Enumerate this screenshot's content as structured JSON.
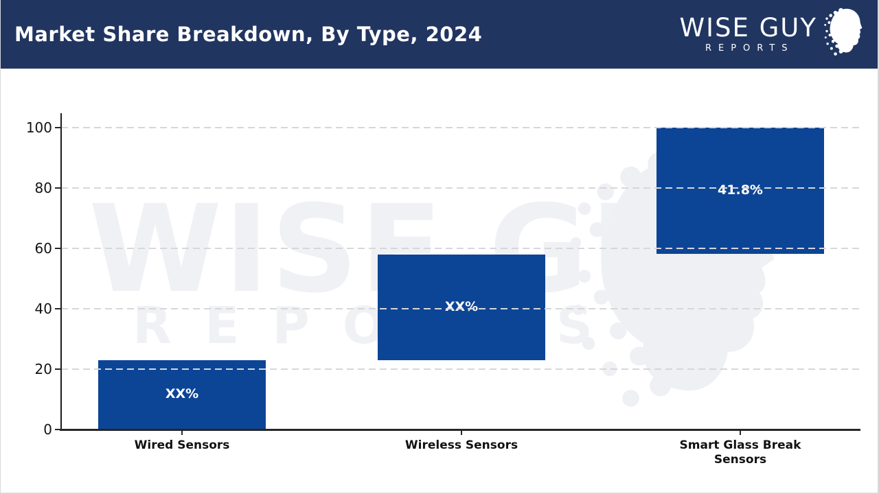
{
  "header": {
    "title": "Market Share Breakdown, By Type, 2024",
    "logo": {
      "line1": "WISE GUY",
      "line2": "REPORTS"
    }
  },
  "watermark": {
    "line1": "WISE GUY",
    "line2": "REPORTS"
  },
  "colors": {
    "header_bg": "#213561",
    "bar_blue": "#0d4596",
    "gridline": "#d7d7d7",
    "axis": "#262626",
    "bar_label_text": "#ffffff",
    "watermark_text": "#f0f1f4"
  },
  "chart_data": {
    "type": "bar",
    "subtype": "stacked-waterfall-segments",
    "title": "Market Share Breakdown, By Type, 2024",
    "categories": [
      "Wired Sensors",
      "Wireless Sensors",
      "Smart Glass Break Sensors"
    ],
    "segments": [
      {
        "category": "Wired Sensors",
        "label": "XX%",
        "start": 0,
        "end": 23
      },
      {
        "category": "Wireless Sensors",
        "label": "XX%",
        "start": 23,
        "end": 58
      },
      {
        "category": "Smart Glass Break Sensors",
        "label": "41.8%",
        "start": 58.2,
        "end": 100
      }
    ],
    "ylim": [
      0,
      100
    ],
    "yticks": [
      0,
      20,
      40,
      60,
      80,
      100
    ],
    "xlabel": "",
    "ylabel": "",
    "grid": "dashed-horizontal",
    "legend": "none"
  }
}
